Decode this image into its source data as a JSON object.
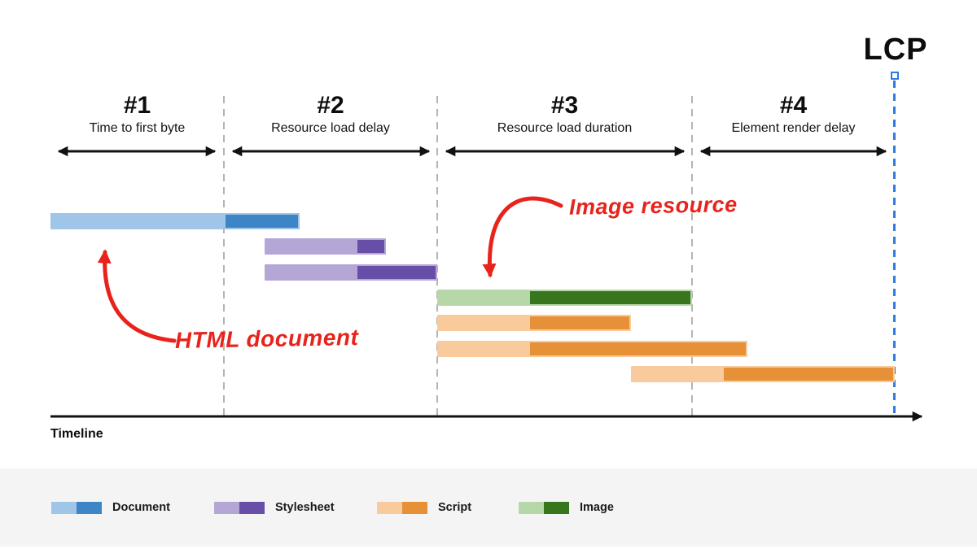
{
  "lcp_label": "LCP",
  "timeline_label": "Timeline",
  "phases": [
    {
      "number": "#1",
      "label": "Time to first byte"
    },
    {
      "number": "#2",
      "label": "Resource load delay"
    },
    {
      "number": "#3",
      "label": "Resource load duration"
    },
    {
      "number": "#4",
      "label": "Element render delay"
    }
  ],
  "annotations": [
    {
      "text": "HTML document",
      "target": "document-bar"
    },
    {
      "text": "Image resource",
      "target": "image-bar"
    }
  ],
  "bars": [
    {
      "type": "document",
      "row": 0,
      "start": 62,
      "transition": 275,
      "end": 368
    },
    {
      "type": "stylesheet",
      "row": 1,
      "start": 325,
      "transition": 437,
      "end": 474
    },
    {
      "type": "stylesheet",
      "row": 2,
      "start": 325,
      "transition": 437,
      "end": 537
    },
    {
      "type": "image",
      "row": 3,
      "start": 537,
      "transition": 649,
      "end": 850
    },
    {
      "type": "script",
      "row": 4,
      "start": 537,
      "transition": 649,
      "end": 775
    },
    {
      "type": "script",
      "row": 5,
      "start": 537,
      "transition": 649,
      "end": 918
    },
    {
      "type": "script",
      "row": 6,
      "start": 775,
      "transition": 887,
      "end": 1099
    }
  ],
  "legend": [
    {
      "label": "Document",
      "type": "document"
    },
    {
      "label": "Stylesheet",
      "type": "stylesheet"
    },
    {
      "label": "Script",
      "type": "script"
    },
    {
      "label": "Image",
      "type": "image"
    }
  ],
  "colors": {
    "resources": {
      "document": {
        "light": "#9fc5e8",
        "dark": "#3d85c6"
      },
      "stylesheet": {
        "light": "#b4a7d6",
        "dark": "#674ea7"
      },
      "script": {
        "light": "#f9cb9c",
        "dark": "#e69138"
      },
      "image": {
        "light": "#b6d7a8",
        "dark": "#38761d"
      }
    },
    "annotation_red": "#e8231c",
    "lcp_blue": "#2e7ce0",
    "separator_gray": "#b4b4b4",
    "axis_black": "#111111",
    "legend_strip": "#f4f4f4"
  }
}
